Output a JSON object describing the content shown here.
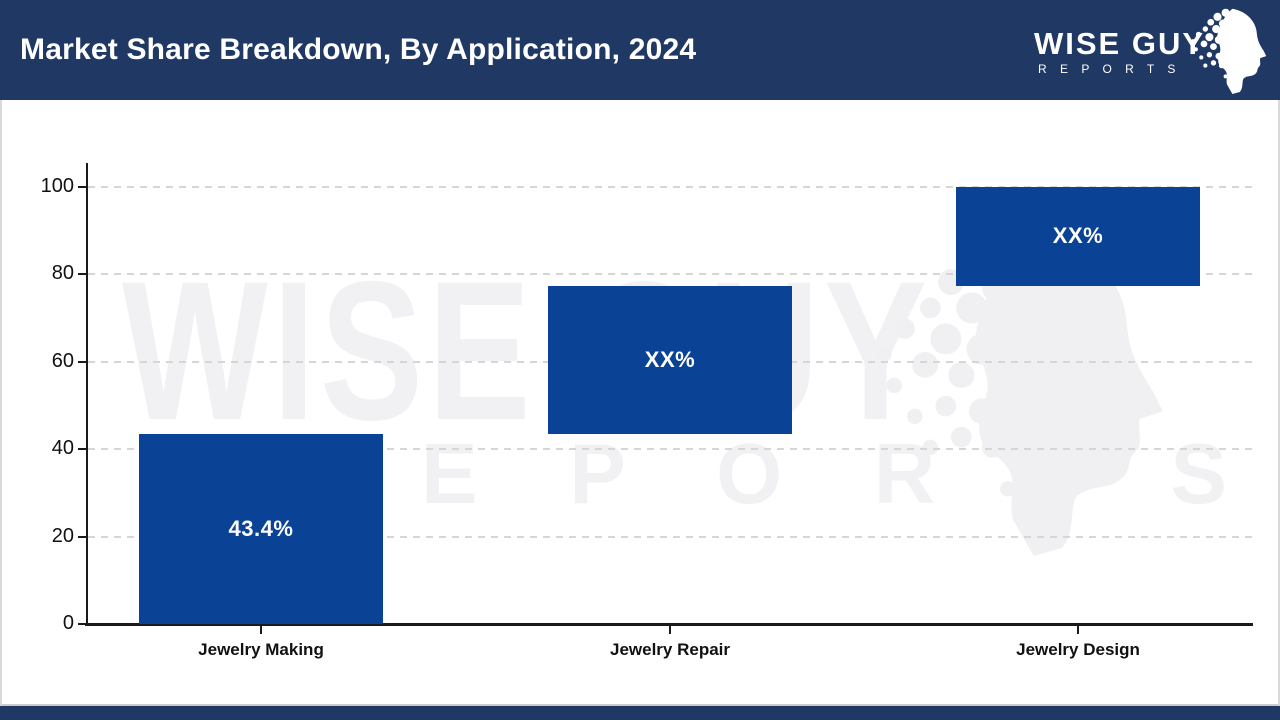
{
  "header": {
    "title": "Market Share Breakdown, By Application, 2024",
    "logo": {
      "wordmark": "WISE GUY",
      "sub": "R E P O R T S"
    }
  },
  "watermark": {
    "line1": "WISE GUY",
    "line2": "R E P O R T S"
  },
  "chart_data": {
    "type": "bar",
    "subtype": "floating-segment-breakdown",
    "title": "Market Share Breakdown, By Application, 2024",
    "categories": [
      "Jewelry Making",
      "Jewelry Repair",
      "Jewelry Design"
    ],
    "segments": [
      {
        "category": "Jewelry Making",
        "from": 0,
        "to": 43.4,
        "label": "43.4%"
      },
      {
        "category": "Jewelry Repair",
        "from": 43.4,
        "to": 77.4,
        "label": "XX%"
      },
      {
        "category": "Jewelry Design",
        "from": 77.4,
        "to": 100,
        "label": "XX%"
      }
    ],
    "xlabel": "",
    "ylabel": "",
    "ylim": [
      0,
      100
    ],
    "yticks": [
      0,
      20,
      40,
      60,
      80,
      100
    ],
    "grid": "horizontal-dashed",
    "legend": "none",
    "colors": {
      "bar": "#0a4296",
      "header": "#203864",
      "grid": "#d6d6d6",
      "axis": "#1a1a1a",
      "watermark": "#f1f1f4"
    }
  }
}
